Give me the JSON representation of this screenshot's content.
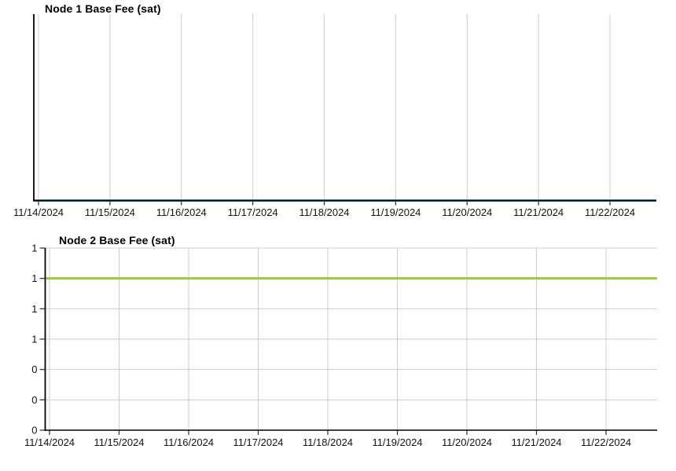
{
  "page": {
    "background": "#ffffff"
  },
  "chart_data": [
    {
      "type": "line",
      "title": "Node 1 Base Fee (sat)",
      "x_tick_labels": [
        "11/14/2024",
        "11/15/2024",
        "11/16/2024",
        "11/17/2024",
        "11/18/2024",
        "11/19/2024",
        "11/20/2024",
        "11/21/2024",
        "11/22/2024"
      ],
      "x_extends_past_last_tick": true,
      "y_tick_values": null,
      "y_tick_labels": [],
      "ylim": [
        0,
        1
      ],
      "series": [
        {
          "name": "Node 1 Base Fee",
          "type": "constant",
          "value": 0,
          "color": "#2c8d94"
        }
      ],
      "grid": {
        "vertical": true,
        "horizontal": false
      },
      "legend": "none"
    },
    {
      "type": "line",
      "title": "Node 2 Base Fee (sat)",
      "x_tick_labels": [
        "11/14/2024",
        "11/15/2024",
        "11/16/2024",
        "11/17/2024",
        "11/18/2024",
        "11/19/2024",
        "11/20/2024",
        "11/21/2024",
        "11/22/2024"
      ],
      "x_extends_past_last_tick": true,
      "y_tick_values": [
        1.2,
        1.0,
        0.8,
        0.6,
        0.4,
        0.2,
        0
      ],
      "y_tick_labels": [
        "1",
        "1",
        "1",
        "1",
        "0",
        "0",
        "0"
      ],
      "ylim": [
        0,
        1.2
      ],
      "series": [
        {
          "name": "Node 2 Base Fee",
          "type": "constant",
          "value": 1,
          "color": "#9dc73c"
        }
      ],
      "grid": {
        "vertical": true,
        "horizontal": true
      },
      "legend": "none"
    }
  ]
}
